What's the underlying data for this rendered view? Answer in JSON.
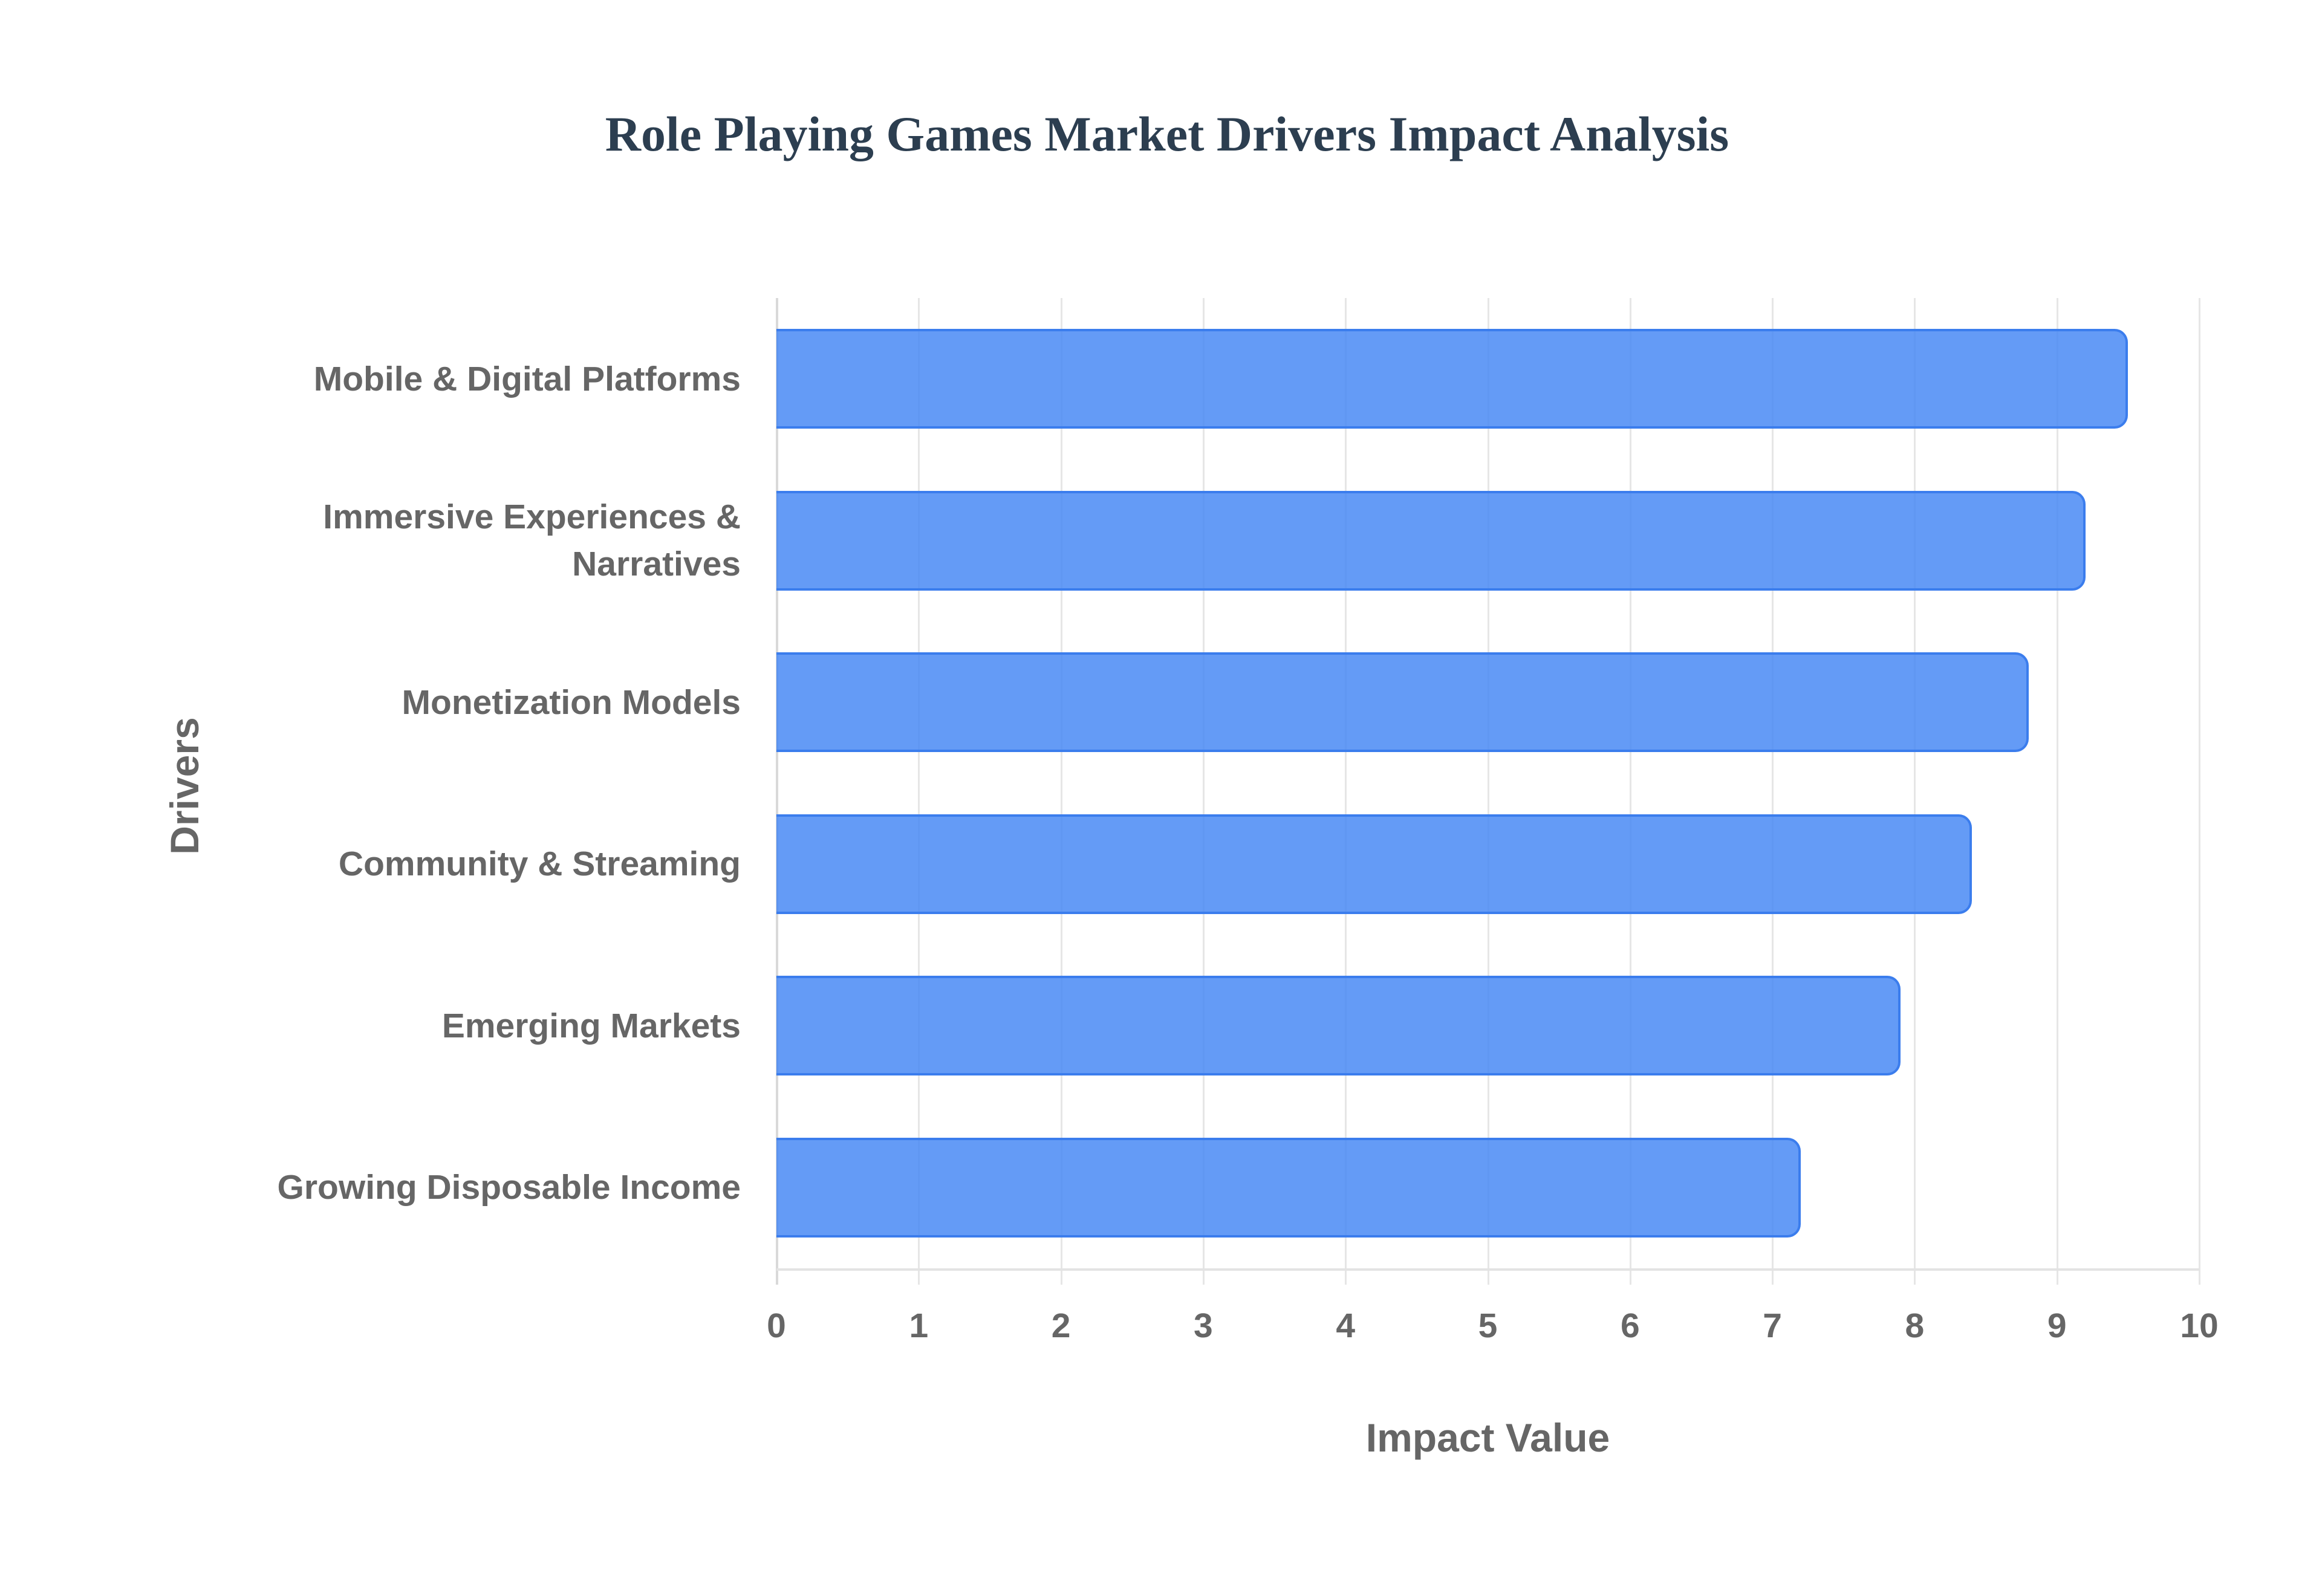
{
  "chart_data": {
    "type": "bar",
    "orientation": "horizontal",
    "title": "Role Playing Games Market Drivers Impact Analysis",
    "xlabel": "Impact Value",
    "ylabel": "Drivers",
    "categories": [
      "Mobile & Digital Platforms",
      "Immersive Experiences & Narratives",
      "Monetization Models",
      "Community & Streaming",
      "Emerging Markets",
      "Growing Disposable Income"
    ],
    "values": [
      9.5,
      9.2,
      8.8,
      8.4,
      7.9,
      7.2
    ],
    "xlim": [
      0,
      10
    ],
    "x_ticks": [
      "0",
      "1",
      "2",
      "3",
      "4",
      "5",
      "6",
      "7",
      "8",
      "9",
      "10"
    ],
    "grid": true,
    "legend": "none",
    "bar_color": "#4285f4",
    "bar_border_color": "#3b7ded"
  },
  "labels": {
    "title": "Role Playing Games Market Drivers Impact Analysis",
    "x_axis_title": "Impact Value",
    "y_axis_title": "Drivers",
    "y_categories": [
      [
        "Mobile & Digital Platforms"
      ],
      [
        "Immersive Experiences &",
        "Narratives"
      ],
      [
        "Monetization Models"
      ],
      [
        "Community & Streaming"
      ],
      [
        "Emerging Markets"
      ],
      [
        "Growing Disposable Income"
      ]
    ]
  }
}
